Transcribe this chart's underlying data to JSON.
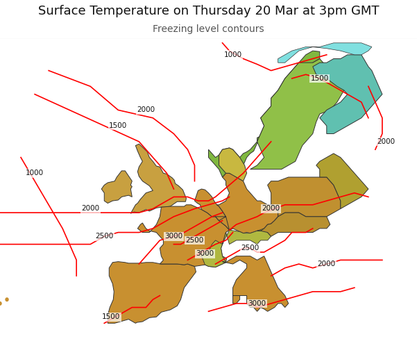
{
  "title": "Surface Temperature on Thursday 20 Mar at 3pm GMT",
  "subtitle": "Freezing level contours",
  "title_fontsize": 13,
  "subtitle_fontsize": 10,
  "bg_color": "#ffffff",
  "header_bg": "#f0f0f0",
  "map_bg": "#c8d4e8",
  "fig_width": 6.01,
  "fig_height": 4.88,
  "dpi": 100
}
